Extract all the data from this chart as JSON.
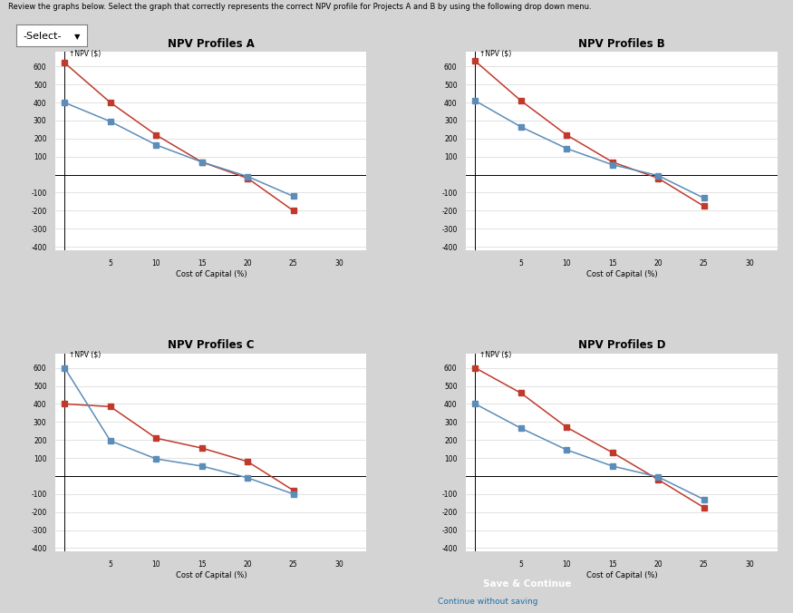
{
  "title_A": "NPV Profiles A",
  "title_B": "NPV Profiles B",
  "title_C": "NPV Profiles C",
  "title_D": "NPV Profiles D",
  "xlabel": "Cost of Capital (%)",
  "x_ticks": [
    5,
    10,
    15,
    20,
    25,
    30
  ],
  "ylim": [
    -420,
    680
  ],
  "xlim": [
    -1,
    33
  ],
  "A_red_x": [
    0,
    5,
    10,
    15,
    20,
    25
  ],
  "A_red_y": [
    620,
    400,
    220,
    70,
    -20,
    -200
  ],
  "A_blue_x": [
    0,
    5,
    10,
    15,
    20,
    25
  ],
  "A_blue_y": [
    400,
    295,
    165,
    70,
    -10,
    -120
  ],
  "B_red_x": [
    0,
    5,
    10,
    15,
    20,
    25
  ],
  "B_red_y": [
    630,
    410,
    220,
    70,
    -20,
    -175
  ],
  "B_blue_x": [
    0,
    5,
    10,
    15,
    20,
    25
  ],
  "B_blue_y": [
    410,
    265,
    145,
    55,
    -5,
    -130
  ],
  "C_red_x": [
    0,
    5,
    10,
    15,
    20,
    25
  ],
  "C_red_y": [
    400,
    385,
    210,
    155,
    80,
    -80
  ],
  "C_blue_x": [
    0,
    5,
    10,
    15,
    20,
    25
  ],
  "C_blue_y": [
    600,
    195,
    95,
    55,
    -10,
    -100
  ],
  "D_red_x": [
    0,
    5,
    10,
    15,
    20,
    25
  ],
  "D_red_y": [
    600,
    460,
    270,
    130,
    -20,
    -175
  ],
  "D_blue_x": [
    0,
    5,
    10,
    15,
    20,
    25
  ],
  "D_blue_y": [
    400,
    265,
    145,
    55,
    -5,
    -130
  ],
  "red_color": "#c0392b",
  "blue_color": "#5b8db8",
  "plot_bg": "#ffffff",
  "fig_bg": "#d4d4d4",
  "select_label": "-Select-",
  "top_text": "Review the graphs below. Select the graph that correctly represents the correct NPV profile for Projects A and B by using the following drop down menu.",
  "save_btn_text": "Save & Continue",
  "continue_text": "Continue without saving",
  "yticks": [
    600,
    500,
    400,
    300,
    200,
    100,
    -100,
    -200,
    -300,
    -400
  ]
}
